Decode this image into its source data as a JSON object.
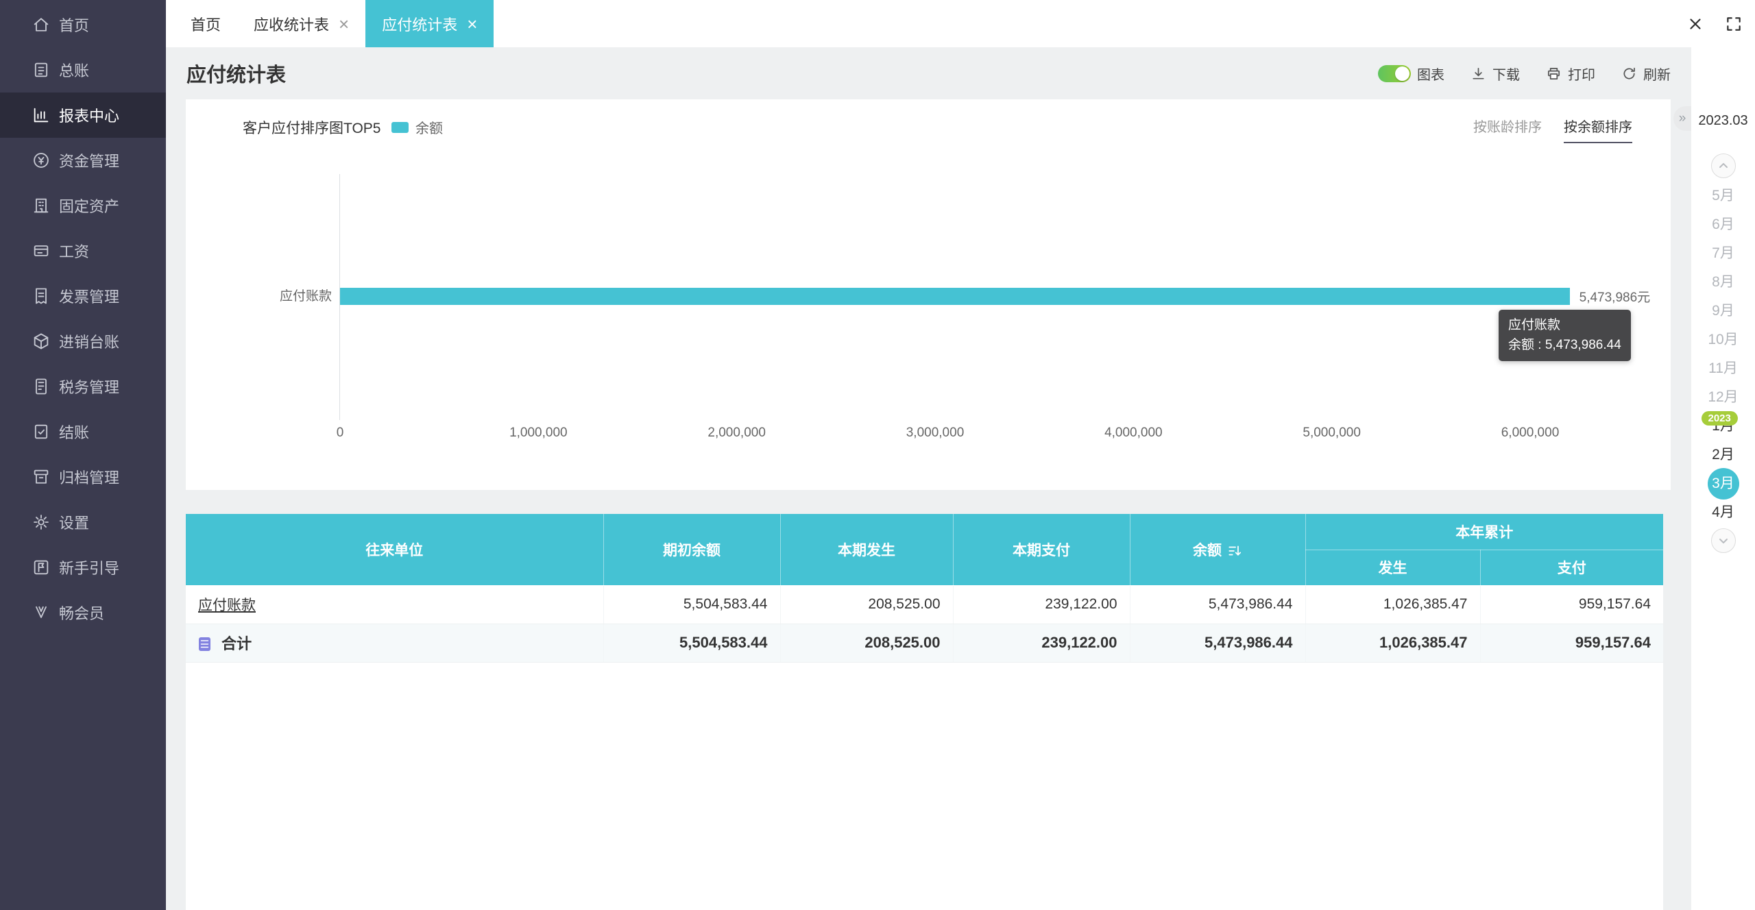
{
  "sidebar": {
    "active_item": "报表中心",
    "items": [
      {
        "label": "首页"
      },
      {
        "label": "总账"
      },
      {
        "label": "报表中心"
      },
      {
        "label": "资金管理"
      },
      {
        "label": "固定资产"
      },
      {
        "label": "工资"
      },
      {
        "label": "发票管理"
      },
      {
        "label": "进销台账"
      },
      {
        "label": "税务管理"
      },
      {
        "label": "结账"
      },
      {
        "label": "归档管理"
      },
      {
        "label": "设置"
      },
      {
        "label": "新手引导"
      },
      {
        "label": "畅会员"
      }
    ]
  },
  "tab_bar": {
    "active_tab": "应付统计表",
    "tabs": [
      {
        "label": "首页"
      },
      {
        "label": "应收统计表"
      },
      {
        "label": "应付统计表"
      }
    ],
    "close_glyph": "×"
  },
  "page": {
    "title": "应付统计表"
  },
  "toolbar": {
    "chart_label": "图表",
    "chart_toggle_on": true,
    "download_label": "下载",
    "print_label": "打印",
    "refresh_label": "刷新"
  },
  "chart_panel": {
    "title": "客户应付排序图TOP5",
    "legend_label": "余额",
    "sort_age_label": "按账龄排序",
    "sort_balance_label": "按余额排序",
    "active_sort": "按余额排序",
    "bar_value_label": "5,473,986元",
    "tooltip_title": "应付账款",
    "tooltip_text": "余额 : 5,473,986.44"
  },
  "chart_data": {
    "type": "bar",
    "orientation": "horizontal",
    "title": "客户应付排序图TOP5",
    "series_name": "余额",
    "categories": [
      "应付账款"
    ],
    "values": [
      5473986.44
    ],
    "value_labels": [
      "5,473,986元"
    ],
    "xlim": [
      0,
      6000000
    ],
    "x_ticks": [
      "0",
      "1,000,000",
      "2,000,000",
      "3,000,000",
      "4,000,000",
      "5,000,000",
      "6,000,000"
    ],
    "bar_color": "#45c2d3",
    "grid": false,
    "legend_position": "top"
  },
  "table": {
    "headers": {
      "unit": "往来单位",
      "opening_balance": "期初余额",
      "current_incurred": "本期发生",
      "current_paid": "本期支付",
      "balance": "余额",
      "year_total": "本年累计",
      "year_incurred": "发生",
      "year_paid": "支付"
    },
    "rows": [
      {
        "name": "应付账款",
        "values": [
          "5,504,583.44",
          "208,525.00",
          "239,122.00",
          "5,473,986.44",
          "1,026,385.47",
          "959,157.64"
        ]
      }
    ],
    "total_row": {
      "name": "合计",
      "values": [
        "5,504,583.44",
        "208,525.00",
        "239,122.00",
        "5,473,986.44",
        "1,026,385.47",
        "959,157.64"
      ]
    }
  },
  "month_panel": {
    "current_period": "2023.03",
    "collapse_glyph": "»",
    "year_badge": "2023",
    "active_month": "3月",
    "months": [
      "5月",
      "6月",
      "7月",
      "8月",
      "9月",
      "10月",
      "11月",
      "12月",
      "1月",
      "2月",
      "3月",
      "4月"
    ]
  },
  "colors": {
    "accent_teal": "#45c2d3",
    "toggle_green": "#8dc63f",
    "badge_green": "#a6cd3a",
    "sidebar_bg": "#3b3b4f",
    "tooltip_bg": "#37373a"
  }
}
